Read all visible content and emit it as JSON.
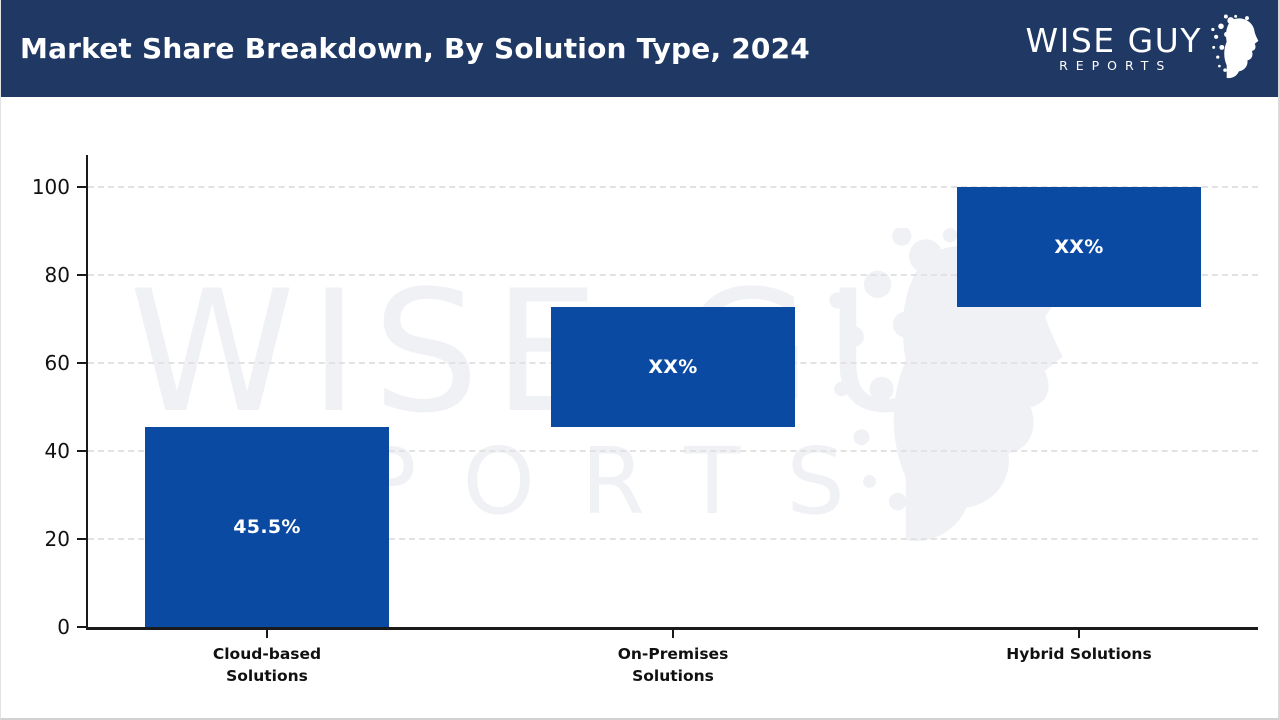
{
  "header": {
    "title": "Market Share Breakdown, By Solution Type, 2024",
    "bg_color": "#1f3864",
    "logo": {
      "line1": "WISE GUY",
      "line2": "REPORTS"
    }
  },
  "watermark": {
    "line1": "WISE GUY",
    "line2": "REPORTS"
  },
  "chart_data": {
    "type": "bar",
    "subtype": "waterfall",
    "title": "Market Share Breakdown, By Solution Type, 2024",
    "categories": [
      {
        "name": "Cloud-based Solutions",
        "lines": [
          "Cloud-based",
          "Solutions"
        ]
      },
      {
        "name": "On-Premises Solutions",
        "lines": [
          "On-Premises",
          "Solutions"
        ]
      },
      {
        "name": "Hybrid Solutions",
        "lines": [
          "Hybrid Solutions"
        ]
      }
    ],
    "bars": [
      {
        "category": "Cloud-based Solutions",
        "start": 0,
        "end": 45.5,
        "value": 45.5,
        "label": "45.5%"
      },
      {
        "category": "On-Premises Solutions",
        "start": 45.5,
        "end": 72.8,
        "value": 27.3,
        "label": "XX%"
      },
      {
        "category": "Hybrid Solutions",
        "start": 72.8,
        "end": 100,
        "value": 27.2,
        "label": "XX%"
      }
    ],
    "ylim": [
      0,
      100
    ],
    "yticks": [
      0,
      20,
      40,
      60,
      80,
      100
    ],
    "grid": {
      "horizontal": true,
      "style": "dashed",
      "color": "#e2e2e2"
    },
    "bar_color": "#0b4aa2",
    "bar_label_color": "#ffffff",
    "axis_color": "#1a1a1a",
    "legend": null
  }
}
